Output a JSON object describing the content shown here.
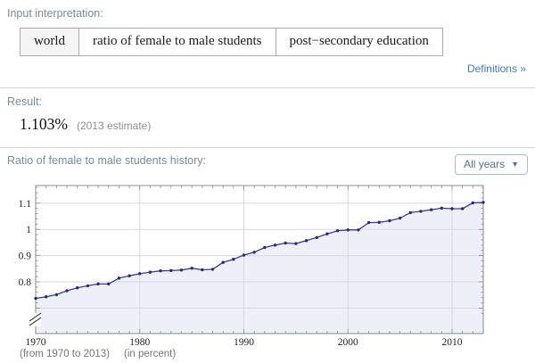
{
  "input_pod": {
    "title": "Input interpretation:",
    "cells": [
      "world",
      "ratio of female to male students",
      "post−secondary education"
    ],
    "definitions_link": "Definitions »"
  },
  "result_pod": {
    "title": "Result:",
    "value": "1.103%",
    "note": "(2013 estimate)"
  },
  "history_pod": {
    "title": "Ratio of female to male students history:",
    "dropdown": {
      "label": "All years",
      "icon": "▼"
    }
  },
  "caption": {
    "range": "(from 1970 to 2013)",
    "unit": "(in percent)"
  },
  "chart_data": {
    "type": "line",
    "title": "Ratio of female to male students history",
    "series_name": "ratio of female to male students (world, post-secondary education)",
    "x": [
      1970,
      1971,
      1972,
      1973,
      1974,
      1975,
      1976,
      1977,
      1978,
      1979,
      1980,
      1981,
      1982,
      1983,
      1984,
      1985,
      1986,
      1987,
      1988,
      1989,
      1990,
      1991,
      1992,
      1993,
      1994,
      1995,
      1996,
      1997,
      1998,
      1999,
      2000,
      2001,
      2002,
      2003,
      2004,
      2005,
      2006,
      2007,
      2008,
      2009,
      2010,
      2011,
      2012,
      2013
    ],
    "values": [
      0.737,
      0.743,
      0.751,
      0.766,
      0.777,
      0.785,
      0.792,
      0.792,
      0.814,
      0.823,
      0.831,
      0.837,
      0.842,
      0.843,
      0.845,
      0.852,
      0.846,
      0.848,
      0.874,
      0.886,
      0.902,
      0.913,
      0.931,
      0.94,
      0.948,
      0.946,
      0.957,
      0.969,
      0.983,
      0.995,
      0.998,
      0.998,
      1.026,
      1.027,
      1.033,
      1.043,
      1.064,
      1.069,
      1.075,
      1.081,
      1.079,
      1.079,
      1.101,
      1.103
    ],
    "xlabel": "",
    "ylabel": "",
    "x_ticks": [
      1970,
      1980,
      1990,
      2000,
      2010
    ],
    "x_gridlines": [
      1980,
      1990,
      2000,
      2010
    ],
    "y_ticks": [
      {
        "v": 0.8,
        "label": "0.8"
      },
      {
        "v": 0.9,
        "label": "0.9"
      },
      {
        "v": 1.0,
        "label": "1"
      },
      {
        "v": 1.1,
        "label": "1.1"
      }
    ],
    "y_gridlines": [
      0.7,
      0.8,
      0.9,
      1.0,
      1.1
    ],
    "ylim_display": [
      0.66,
      1.17
    ],
    "axis_break": true,
    "grid_on": true,
    "legend": "none",
    "line_color": "#3d3c8f",
    "point_color": "#2d2b6b",
    "fill_color": "#eef0f9",
    "grid_color": "#d8d8dd",
    "frame_color": "#8a8a8a"
  }
}
